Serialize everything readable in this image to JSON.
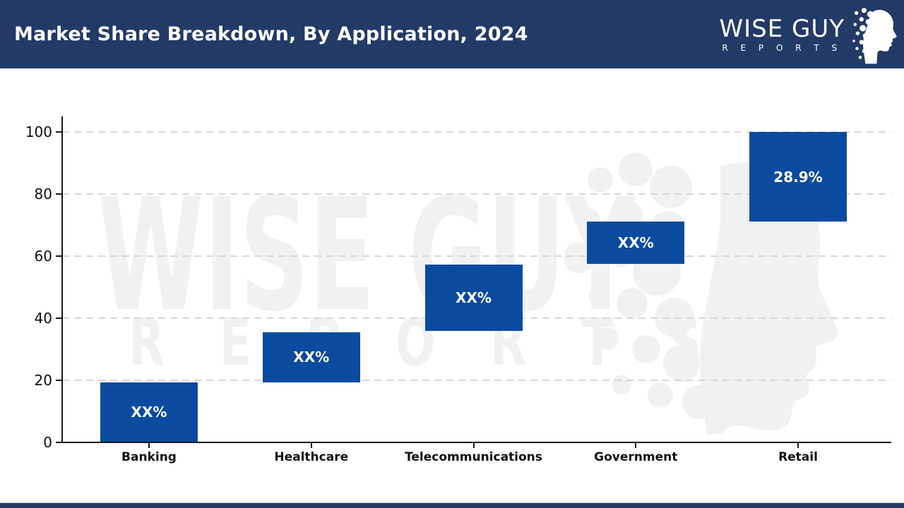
{
  "header": {
    "title": "Market Share Breakdown, By Application, 2024",
    "brand_line1": "WISE GUY",
    "brand_line2": "R E P O R T S"
  },
  "watermark": {
    "line1": "WISE GUY",
    "line2": "R E P O R T S"
  },
  "chart_data": {
    "type": "bar",
    "subtype": "waterfall",
    "title": "Market Share Breakdown, By Application, 2024",
    "categories": [
      "Banking",
      "Healthcare",
      "Telecommunications",
      "Government",
      "Retail"
    ],
    "segments": [
      {
        "category": "Banking",
        "start": 0,
        "end": 19.4,
        "label": "XX%"
      },
      {
        "category": "Healthcare",
        "start": 19.4,
        "end": 35.5,
        "label": "XX%"
      },
      {
        "category": "Telecommunications",
        "start": 35.8,
        "end": 57.3,
        "label": "XX%"
      },
      {
        "category": "Government",
        "start": 57.5,
        "end": 71.1,
        "label": "XX%"
      },
      {
        "category": "Retail",
        "start": 71.1,
        "end": 100,
        "label": "28.9%"
      }
    ],
    "yticks": [
      0,
      20,
      40,
      60,
      80,
      100
    ],
    "ylim": [
      0,
      105
    ],
    "xlabel": "",
    "ylabel": "",
    "grid": "horizontal-dashed",
    "legend": "none",
    "bar_color": "#0b4b9f",
    "bar_label_color": "#ffffff",
    "axis_color": "#1a1a1a",
    "gridline_color": "#d8d8d8"
  },
  "colors": {
    "header_bg": "#233a66",
    "footer_bg": "#233a66",
    "watermark": "#f1f1f4"
  }
}
